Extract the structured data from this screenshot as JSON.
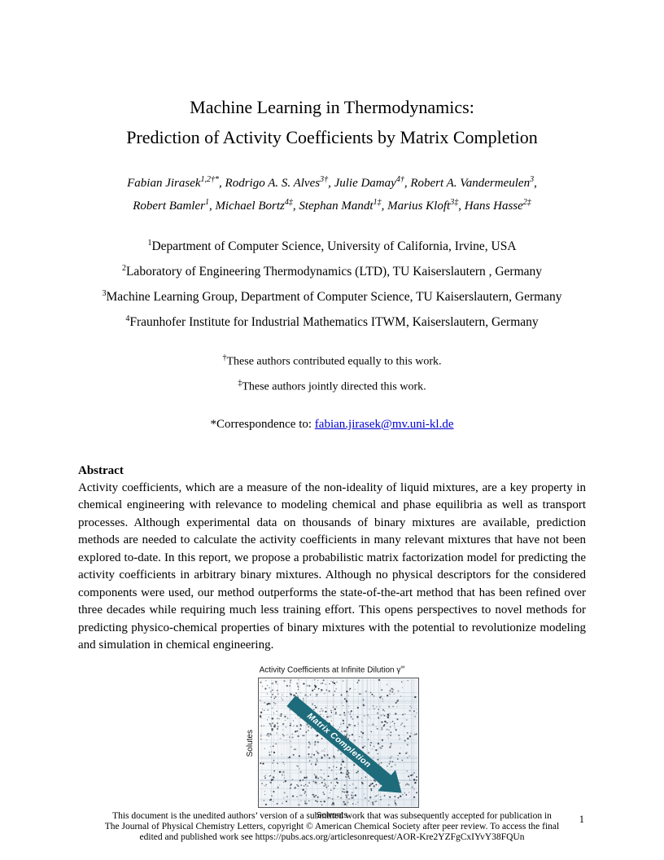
{
  "colors": {
    "link": "#0000d0",
    "arrow": "#1d6b7b",
    "matrix_dot": "#222b38",
    "matrix_streak": "#a9b9c6"
  },
  "header": {
    "title_line1": "Machine Learning in Thermodynamics:",
    "title_line2": "Prediction of Activity Coefficients by Matrix Completion"
  },
  "authors": {
    "line1": [
      {
        "name": "Fabian Jirasek",
        "sup": "1,2†*"
      },
      {
        "name": "Rodrigo A. S. Alves",
        "sup": "3†"
      },
      {
        "name": "Julie Damay",
        "sup": "4†"
      },
      {
        "name": "Robert A. Vandermeulen",
        "sup": "3"
      }
    ],
    "line1_trailing": ",",
    "line2": [
      {
        "name": "Robert Bamler",
        "sup": "1"
      },
      {
        "name": "Michael Bortz",
        "sup": "4‡"
      },
      {
        "name": "Stephan Mandt",
        "sup": "1‡"
      },
      {
        "name": "Marius Kloft",
        "sup": "3‡"
      },
      {
        "name": "Hans Hasse",
        "sup": "2‡"
      }
    ]
  },
  "affiliations": [
    {
      "sup": "1",
      "text": "Department of Computer Science, University of California, Irvine, USA"
    },
    {
      "sup": "2",
      "text": "Laboratory of Engineering Thermodynamics (LTD), TU Kaiserslautern , Germany"
    },
    {
      "sup": "3",
      "text": "Machine Learning Group, Department of Computer Science, TU Kaiserslautern, Germany"
    },
    {
      "sup": "4",
      "text": "Fraunhofer Institute for Industrial Mathematics ITWM, Kaiserslautern, Germany"
    }
  ],
  "footnotes": [
    {
      "sup": "†",
      "text": "These authors contributed equally to this work."
    },
    {
      "sup": "‡",
      "text": "These authors jointly directed this work."
    }
  ],
  "correspondence": {
    "prefix": "*Correspondence to: ",
    "email": "fabian.jirasek@mv.uni-kl.de"
  },
  "abstract": {
    "heading": "Abstract",
    "text": "Activity coefficients, which are a measure of the non-ideality of liquid mixtures, are a key property in chemical engineering with relevance to modeling chemical and phase equilibria as well as transport processes. Although experimental data on thousands of binary mixtures are available, prediction methods are needed to calculate the activity coefficients in many relevant mixtures that have not been explored to-date. In this report, we propose a probabilistic matrix factorization model for predicting the activity coefficients in arbitrary binary mixtures. Although no physical descriptors for the considered components were used, our method outperforms the state-of-the-art method that has been refined over three decades while requiring much less training effort. This opens perspectives to novel methods for predicting physico-chemical properties of binary mixtures with the potential to revolutionize modeling and simulation in chemical engineering."
  },
  "figure": {
    "title": "Activity Coefficients at Infinite Dilution ",
    "symbol": "γ",
    "symbol_sup": "∞",
    "ylabel": "Solutes",
    "xlabel": "Solvents",
    "arrow_label": "Matrix Completion"
  },
  "footer": {
    "lines": [
      "This document is the unedited authors’ version of a submitted work that was subsequently accepted for publication in",
      "The Journal of Physical Chemistry Letters, copyright © American Chemical Society after peer review. To access the final",
      "edited and published work see https://pubs.acs.org/articlesonrequest/AOR-Kre2YZFgCxIYvY38FQUn"
    ],
    "page_number": "1"
  }
}
